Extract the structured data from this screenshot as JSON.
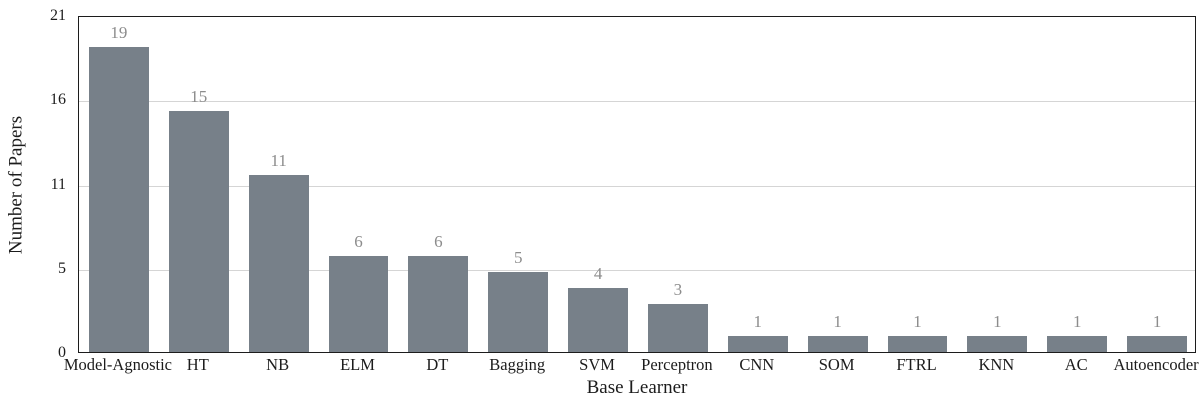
{
  "chart_data": {
    "type": "bar",
    "title": "",
    "xlabel": "Base Learner",
    "ylabel": "Number of Papers",
    "categories": [
      "Model-Agnostic",
      "HT",
      "NB",
      "ELM",
      "DT",
      "Bagging",
      "SVM",
      "Perceptron",
      "CNN",
      "SOM",
      "FTRL",
      "KNN",
      "AC",
      "Autoencoder"
    ],
    "values": [
      19,
      15,
      11,
      6,
      6,
      5,
      4,
      3,
      1,
      1,
      1,
      1,
      1,
      1
    ],
    "bar_value_labels": [
      "19",
      "15",
      "11",
      "6",
      "6",
      "5",
      "4",
      "3",
      "1",
      "1",
      "1",
      "1",
      "1",
      "1"
    ],
    "ylim": [
      0,
      21
    ],
    "ytick_labels": [
      "0",
      "5",
      "11",
      "16",
      "21"
    ],
    "legend": "none",
    "grid": "horizontal",
    "colors": {
      "bar_fill": "#778089",
      "value_label": "#8c8c8c",
      "gridline": "#d5d5d5",
      "axis": "#1c1c1c",
      "tick_label": "#1c1c1c",
      "background": "#ffffff"
    }
  }
}
